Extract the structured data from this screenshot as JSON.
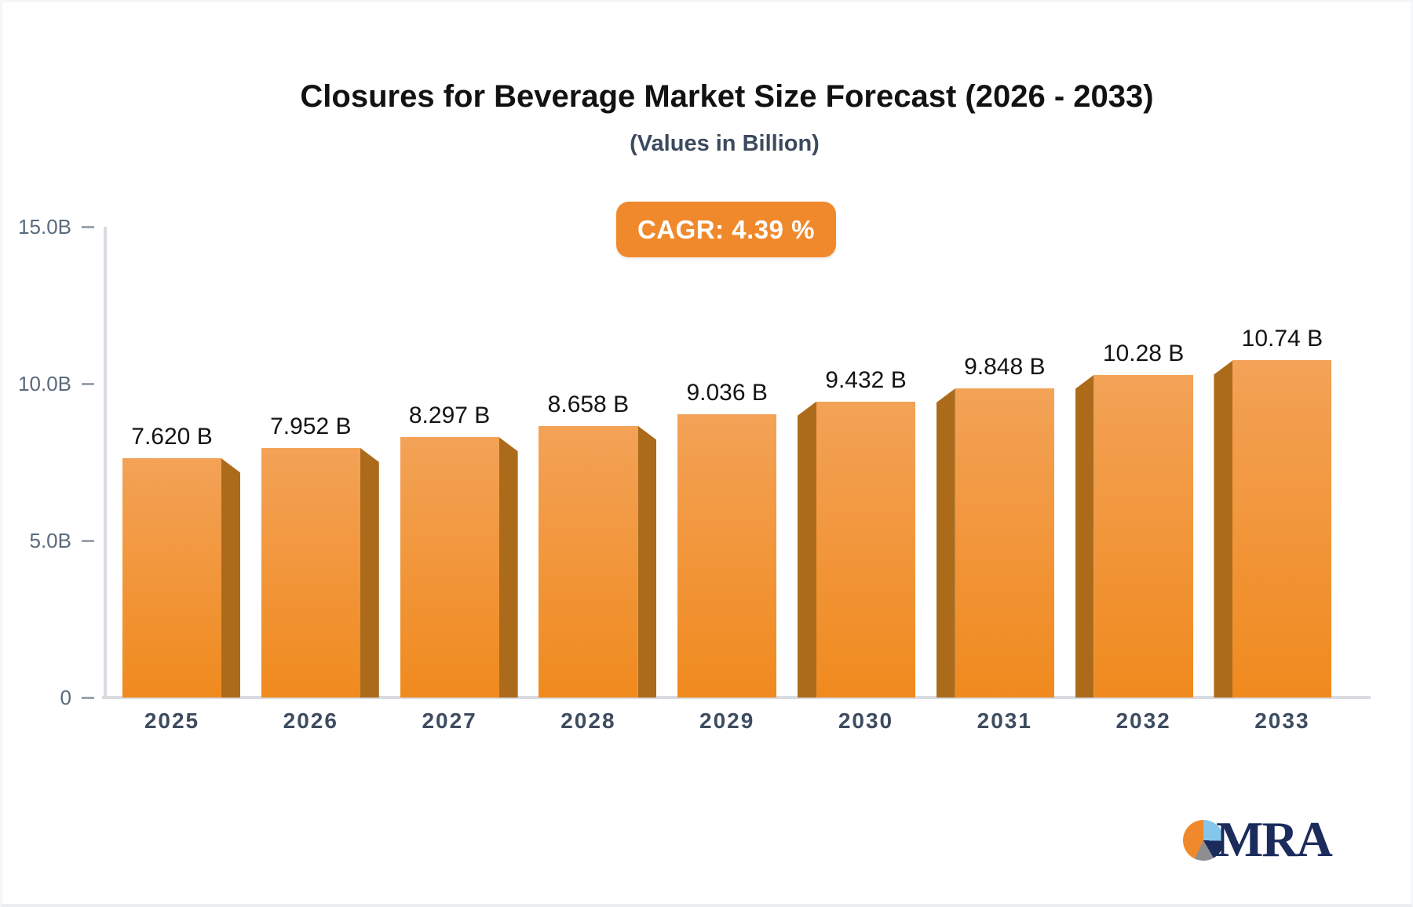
{
  "header": {
    "title": "Closures for Beverage Market Size Forecast (2026 - 2033)",
    "subtitle": "(Values in Billion)",
    "cagr_badge": "CAGR: 4.39 %"
  },
  "chart_data": {
    "type": "bar",
    "title": "Closures for Beverage Market Size Forecast (2026 - 2033)",
    "subtitle": "(Values in Billion)",
    "cagr_percent": 4.39,
    "unit": "Billion",
    "categories": [
      "2025",
      "2026",
      "2027",
      "2028",
      "2029",
      "2030",
      "2031",
      "2032",
      "2033"
    ],
    "values": [
      7.62,
      7.952,
      8.297,
      8.658,
      9.036,
      9.432,
      9.848,
      10.28,
      10.74
    ],
    "value_labels": [
      "7.620 B",
      "7.952 B",
      "8.297 B",
      "8.658 B",
      "9.036 B",
      "9.432 B",
      "9.848 B",
      "10.28 B",
      "10.74 B"
    ],
    "y_ticks": [
      "15.0B",
      "10.0B",
      "5.0B",
      "0"
    ],
    "ylim": [
      0,
      15
    ],
    "grid": false,
    "legend": false
  },
  "colors": {
    "bar_face_top": "#F3A257",
    "bar_face_bottom": "#F08A1E",
    "bar_side": "#AC6B1B",
    "badge_bg": "#F0892B",
    "title_text": "#121212",
    "subtitle_text": "#3C4A5E",
    "axis_line": "#D9DBE0",
    "tick_dash": "#9BA4AF",
    "y_label_text": "#5A6A7C",
    "x_label_text": "#3E4C60",
    "logo_navy": "#1B2B5C",
    "logo_blue": "#85C7EA",
    "logo_gray": "#8E8E90",
    "logo_orange": "#F0892B"
  },
  "logo": {
    "text": "MRA"
  }
}
